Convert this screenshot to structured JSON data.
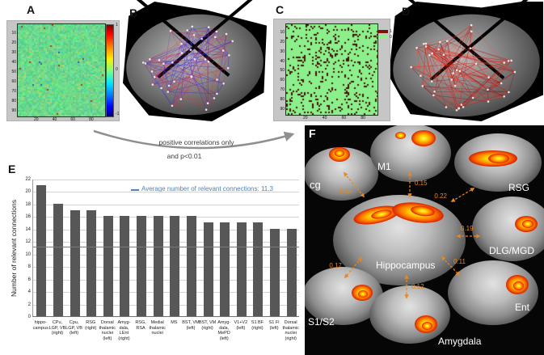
{
  "panel_a": {
    "label": "A",
    "y_ticks": [
      "10",
      "20",
      "30",
      "40",
      "50",
      "60",
      "70",
      "80",
      "90"
    ],
    "x_ticks": [
      "20",
      "40",
      "60",
      "80"
    ],
    "colorbar_ticks": [
      "1",
      "0",
      "-1"
    ],
    "matrix_base_color": "#72dd8e"
  },
  "panel_b": {
    "label": "B",
    "network_colors": [
      "rgba(55,45,215,0.50)",
      "rgba(190,40,130,0.42)",
      "rgba(225,55,55,0.30)"
    ],
    "node_color": "#ffffff"
  },
  "panel_c": {
    "label": "C",
    "y_ticks": [
      "10",
      "20",
      "30",
      "40",
      "50",
      "60",
      "70",
      "80",
      "90"
    ],
    "x_ticks": [
      "20",
      "40",
      "60",
      "80"
    ],
    "legend": [
      {
        "label": "1",
        "color": "#7a1505"
      },
      {
        "label": "0",
        "color": "#8ef08e"
      }
    ],
    "matrix_base_color": "#8bef8b",
    "dot_color": "#43100a"
  },
  "panel_d": {
    "label": "D",
    "network_colors": [
      "rgba(205,25,25,0.50)",
      "rgba(255,70,45,0.40)",
      "rgba(150,12,12,0.45)"
    ],
    "node_color": "#ffffff"
  },
  "transition": {
    "line1": "positive correlations only",
    "line2": "and p<0.01"
  },
  "panel_e": {
    "label": "E"
  },
  "chart_data": {
    "type": "bar",
    "title": "",
    "xlabel": "",
    "ylabel": "Number of relevant connections",
    "ylim": [
      0,
      22
    ],
    "ytick_step": 2,
    "grid": true,
    "bar_color": "#575757",
    "categories": [
      "hippo- campus",
      "CPu, LGP, VB (right)",
      "Cpu, LGP, VB (left)",
      "RSG (right)",
      "Dorsal thalamic nuclei (left)",
      "Amyg- dala, LEnt (right)",
      "RSG, RSA",
      "Medial thalamic nuclei",
      "MS",
      "BST, VM (left)",
      "BST, VM (right)",
      "Amyg- dala, MePD (left)",
      "V1+V2 (left)",
      "S1 BF (right)",
      "S1 Fl (left)",
      "Dorsal thalamic nuclei (right)"
    ],
    "values": [
      21,
      18,
      17,
      17,
      16,
      16,
      16,
      16,
      16,
      16,
      15,
      15,
      15,
      15,
      14,
      14
    ],
    "average_line": {
      "value": 11.3,
      "label": "Average number of relevant connections: 11.3",
      "color": "#4f81bd"
    }
  },
  "panel_f": {
    "label": "F",
    "seed_label": "Hippocampus",
    "arrow_color": "#e8871f",
    "regions": [
      {
        "name": "cg",
        "value": "0.15"
      },
      {
        "name": "M1",
        "value": "0.15"
      },
      {
        "name": "RSG",
        "value": "0.22"
      },
      {
        "name": "DLG/MGD",
        "value": "0.19"
      },
      {
        "name": "Ent",
        "value": "0.11"
      },
      {
        "name": "Amygdala",
        "value": "0.12"
      },
      {
        "name": "S1/S2",
        "value": "0.17"
      }
    ]
  }
}
